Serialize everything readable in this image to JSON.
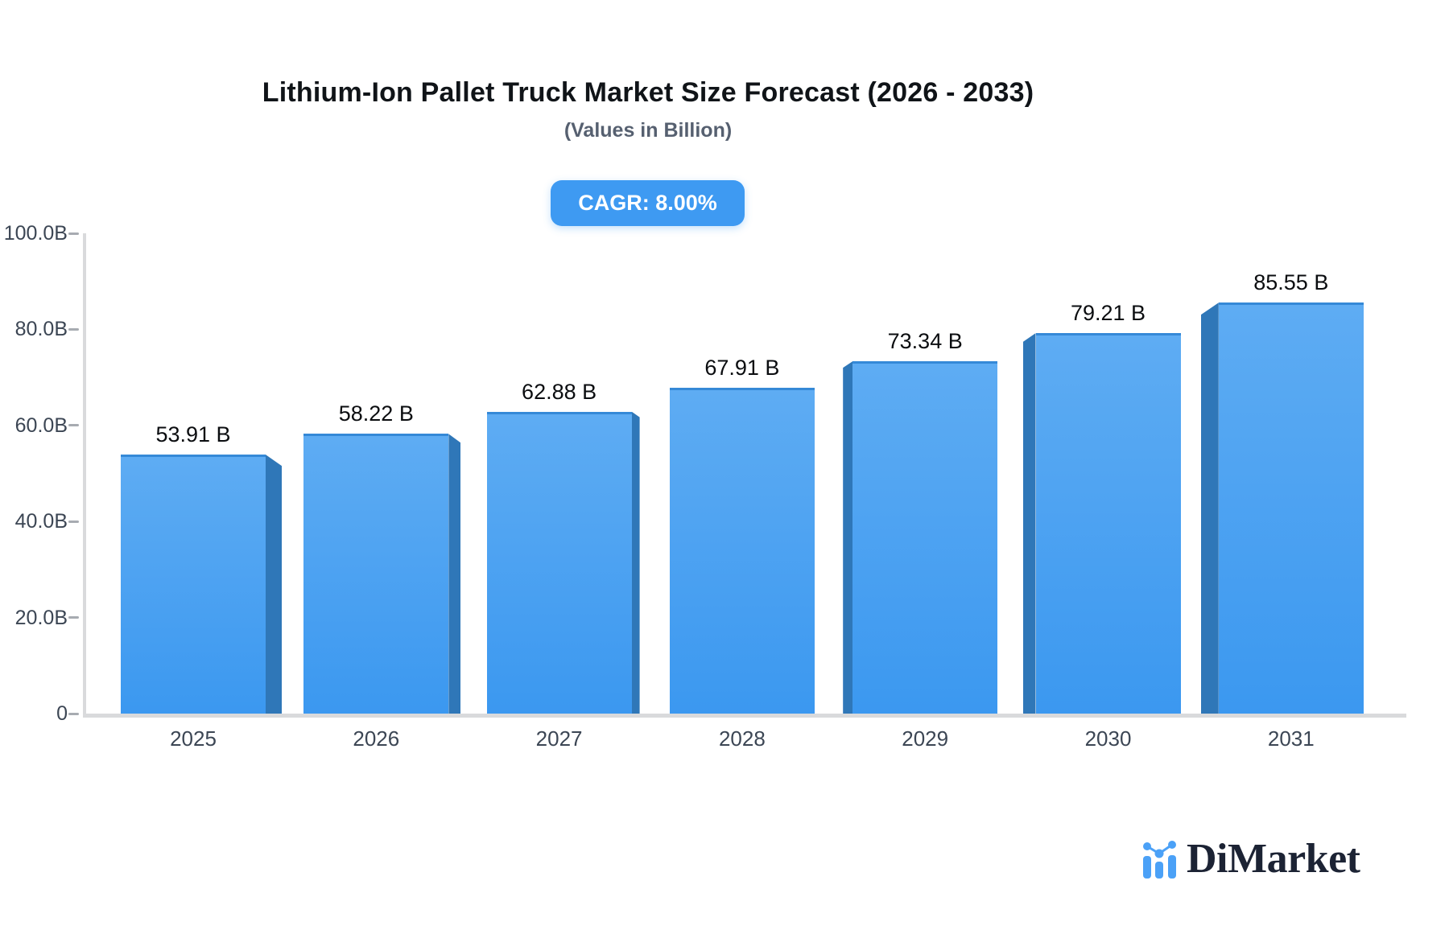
{
  "header": {
    "title": "Lithium-Ion Pallet Truck Market Size Forecast (2026 - 2033)",
    "subtitle": "(Values in Billion)",
    "cagr_badge": "CAGR: 8.00%"
  },
  "footer": {
    "brand": "DiMarket"
  },
  "colors": {
    "bar_face_top": "#5EACF3",
    "bar_face_bottom": "#3B98F0",
    "bar_side": "#2F77B8",
    "badge_bg": "#3E9AF2",
    "axis_line": "#D9DADC",
    "tick_dash": "#A7ABB1",
    "value_label": "#0B0D10",
    "axis_label": "#3C4654",
    "logo_text": "#1C2334",
    "logo_icon": "#4BA1F7"
  },
  "chart_data": {
    "type": "bar",
    "title": "Lithium-Ion Pallet Truck Market Size Forecast (2026 - 2033)",
    "subtitle": "(Values in Billion)",
    "xlabel": "",
    "ylabel": "",
    "categories": [
      "2025",
      "2026",
      "2027",
      "2028",
      "2029",
      "2030",
      "2031"
    ],
    "values": [
      53.91,
      58.22,
      62.88,
      67.91,
      73.34,
      79.21,
      85.55
    ],
    "value_labels": [
      "53.91 B",
      "58.22 B",
      "62.88 B",
      "67.91 B",
      "73.34 B",
      "79.21 B",
      "85.55 B"
    ],
    "unit": "Billion",
    "cagr": "8.00%",
    "ylim": [
      0,
      100
    ],
    "y_ticks": [
      {
        "value": 100,
        "label": "100.0B"
      },
      {
        "value": 80,
        "label": "80.0B"
      },
      {
        "value": 60,
        "label": "60.0B"
      },
      {
        "value": 40,
        "label": "40.0B"
      },
      {
        "value": 20,
        "label": "20.0B"
      },
      {
        "value": 0,
        "label": "0"
      }
    ],
    "grid": false,
    "legend": false,
    "bar_style": "3d-beveled, perspective vanishing at center bar"
  }
}
